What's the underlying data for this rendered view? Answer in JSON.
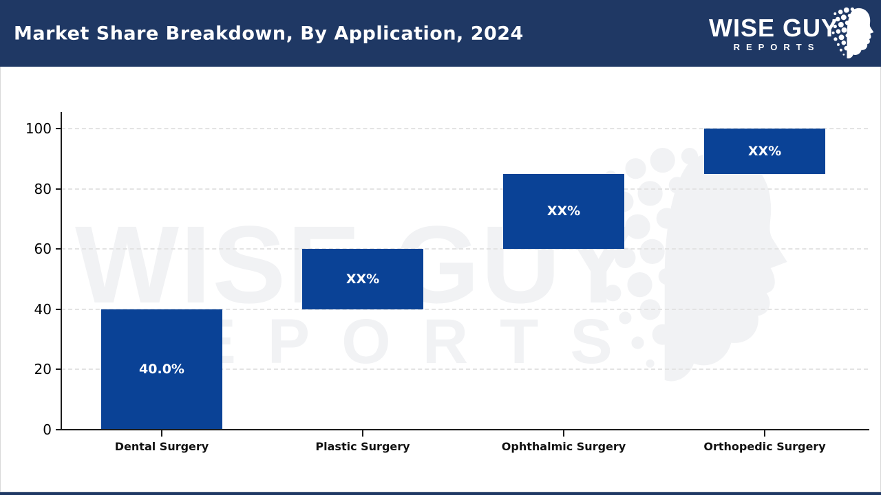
{
  "header": {
    "title": "Market Share Breakdown, By Application, 2024",
    "logo": {
      "line1": "WISE GUY",
      "line2": "REPORTS"
    }
  },
  "watermark": {
    "line1": "WISE GUY",
    "line2": "REPORTS"
  },
  "chart_data": {
    "type": "bar",
    "subtype": "waterfall",
    "title": "Market Share Breakdown, By Application, 2024",
    "categories": [
      "Dental Surgery",
      "Plastic Surgery",
      "Ophthalmic Surgery",
      "Orthopedic Surgery"
    ],
    "segments": [
      {
        "category": "Dental Surgery",
        "start": 0,
        "end": 40,
        "value_label": "40.0%"
      },
      {
        "category": "Plastic Surgery",
        "start": 40,
        "end": 60,
        "value_label": "XX%"
      },
      {
        "category": "Ophthalmic Surgery",
        "start": 60,
        "end": 85,
        "value_label": "XX%"
      },
      {
        "category": "Orthopedic Surgery",
        "start": 85,
        "end": 100,
        "value_label": "XX%"
      }
    ],
    "xlabel": "",
    "ylabel": "",
    "ylim": [
      0,
      100
    ],
    "yticks": [
      0,
      20,
      40,
      60,
      80,
      100
    ],
    "grid": "horizontal-dashed",
    "legend": "none",
    "colors": {
      "bar": "#0a4296",
      "value_label": "#ffffff",
      "axis": "#1a1a1a",
      "gridline": "#e3e3e3"
    }
  },
  "colors": {
    "header_bg": "#1f3864",
    "footer_bg": "#1f3864",
    "watermark": "#f1f2f4",
    "background": "#ffffff"
  }
}
